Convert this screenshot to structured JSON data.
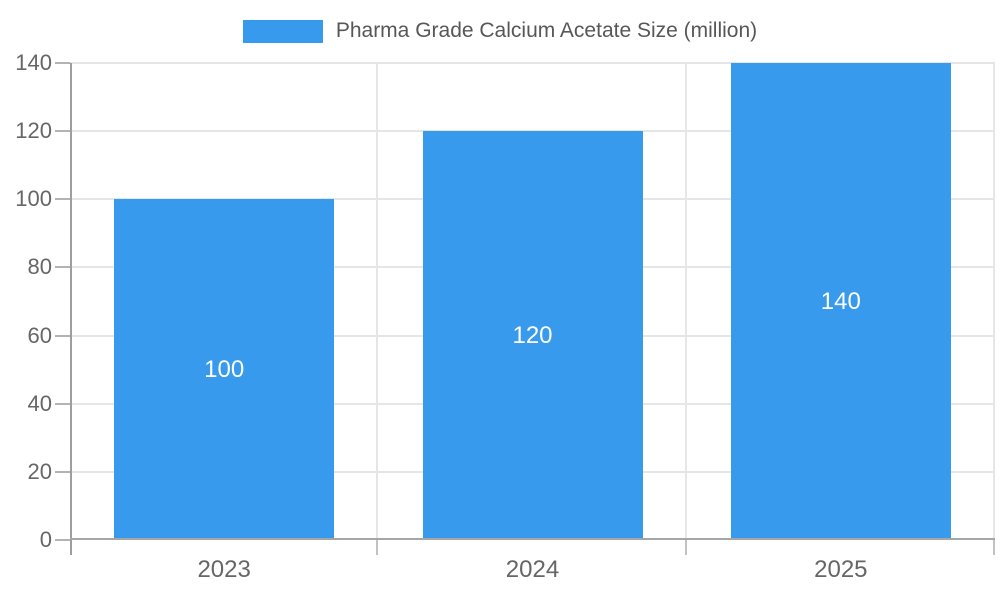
{
  "legend": {
    "label": "Pharma Grade Calcium Acetate Size (million)",
    "swatch_color": "#389aec"
  },
  "chart_data": {
    "type": "bar",
    "title": "Pharma Grade Calcium Acetate Size (million)",
    "categories": [
      "2023",
      "2024",
      "2025"
    ],
    "values": [
      100,
      120,
      140
    ],
    "series": [
      {
        "name": "Pharma Grade Calcium Acetate Size (million)",
        "values": [
          100,
          120,
          140
        ]
      }
    ],
    "data_labels": [
      "100",
      "120",
      "140"
    ],
    "yticks": [
      0,
      20,
      40,
      60,
      80,
      100,
      120,
      140
    ],
    "ylim": [
      0,
      140
    ],
    "xlabel": "",
    "ylabel": "",
    "grid": true,
    "legend_position": "top",
    "bar_color": "#389aec",
    "bar_label_color": "#ffffff",
    "axis_color": "#a6a6a6",
    "grid_color": "#e6e6e6",
    "tick_label_color": "#666666",
    "legend_text_color": "#575757"
  }
}
